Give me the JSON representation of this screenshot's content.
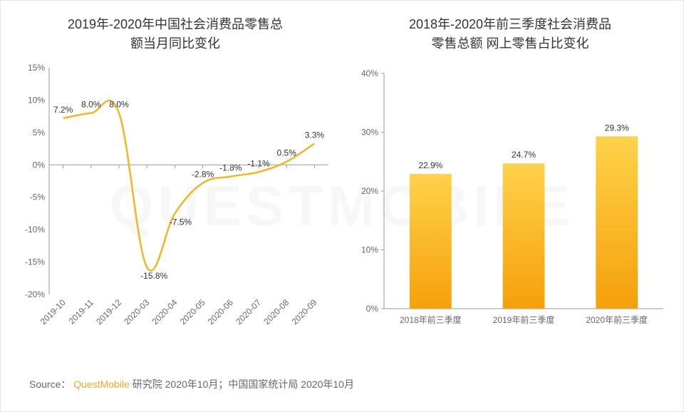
{
  "watermark": "QUESTMOBILE",
  "source": {
    "prefix": "Source：",
    "brand": "QuestMobile",
    "suffix": "研究院 2020年10月；中国国家统计局 2020年10月"
  },
  "left_chart": {
    "type": "line",
    "title_l1": "2019年-2020年中国社会消费品零售总",
    "title_l2": "额当月同比变化",
    "line_color": "#f5b521",
    "line_width": 2.5,
    "axis_color": "#999999",
    "zero_line_color": "#999999",
    "text_color": "#666666",
    "label_fontsize": 12,
    "title_fontsize": 18,
    "ylim": [
      -20,
      15
    ],
    "ytick_step": 5,
    "y_format": "percent",
    "categories": [
      "2019-10",
      "2019-11",
      "2019-12",
      "2020-03",
      "2020-04",
      "2020-05",
      "2020-06",
      "2020-07",
      "2020-08",
      "2020-09"
    ],
    "values": [
      7.2,
      8.0,
      8.0,
      -15.8,
      -7.5,
      -2.8,
      -1.8,
      -1.1,
      0.5,
      3.3
    ],
    "value_labels": [
      "7.2%",
      "8.0%",
      "8.0%",
      "-15.8%",
      "-7.5%",
      "-2.8%",
      "-1.8%",
      "-1.1%",
      "0.5%",
      "3.3%"
    ]
  },
  "right_chart": {
    "type": "bar",
    "title_l1": "2018年-2020年前三季度社会消费品",
    "title_l2": "零售总额 网上零售占比变化",
    "bar_gradient_top": "#ffd24a",
    "bar_gradient_bottom": "#f5a00a",
    "axis_color": "#999999",
    "text_color": "#666666",
    "label_fontsize": 12,
    "title_fontsize": 18,
    "ylim": [
      0,
      40
    ],
    "ytick_step": 10,
    "y_format": "percent",
    "bar_width_ratio": 0.45,
    "categories": [
      "2018年前三季度",
      "2019年前三季度",
      "2020年前三季度"
    ],
    "values": [
      22.9,
      24.7,
      29.3
    ],
    "value_labels": [
      "22.9%",
      "24.7%",
      "29.3%"
    ]
  }
}
